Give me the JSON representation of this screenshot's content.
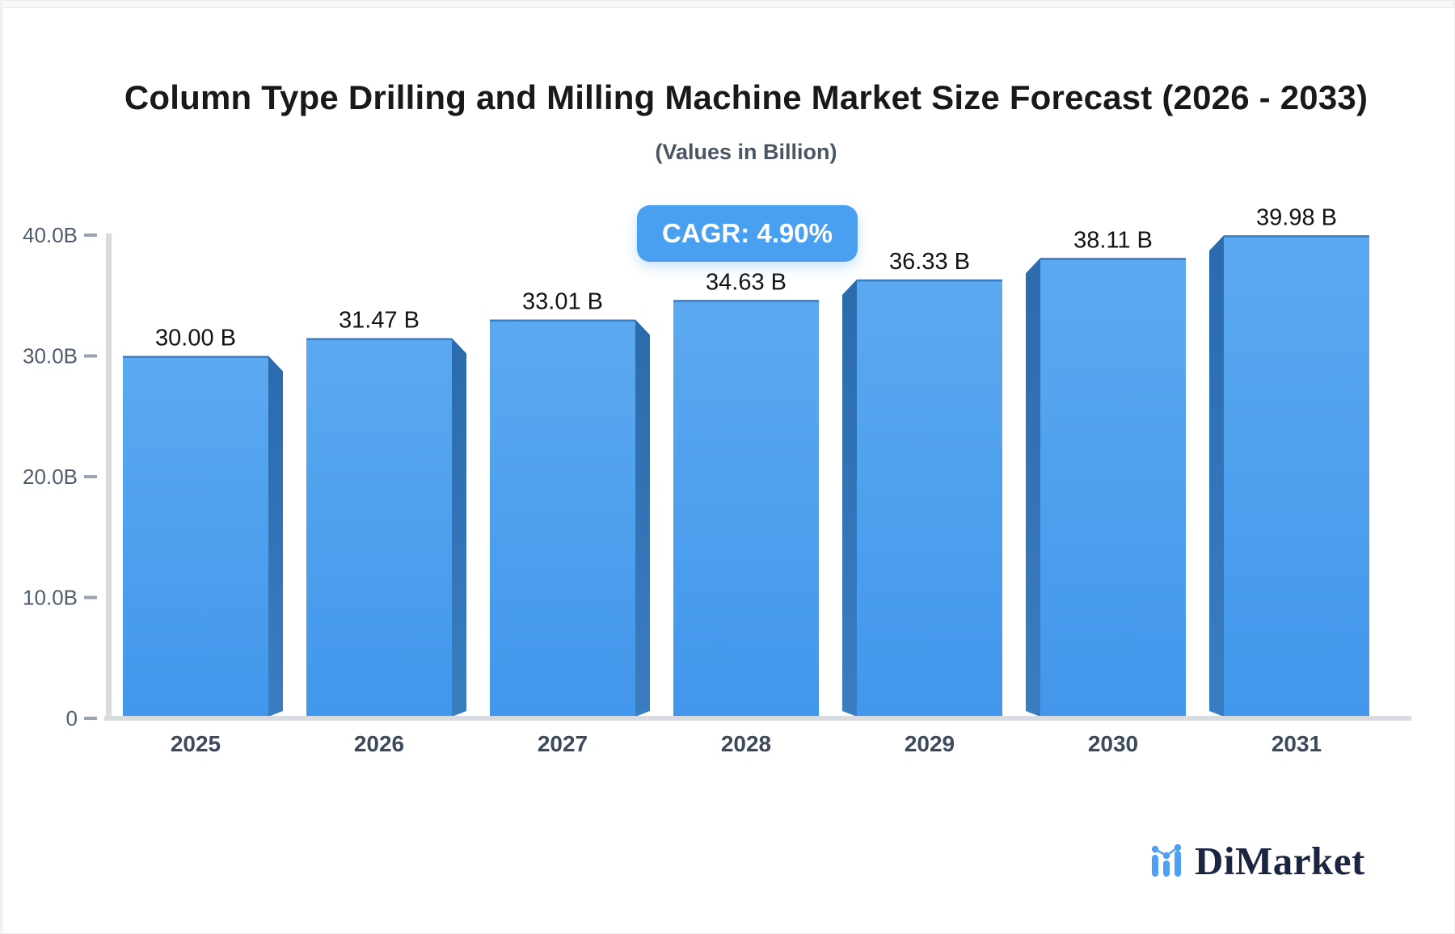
{
  "header": {
    "title": "Column Type Drilling and Milling Machine Market Size Forecast (2026 - 2033)",
    "subtitle": "(Values in Billion)"
  },
  "cagr_badge": {
    "label": "CAGR: 4.90%",
    "bg": "#4AA0F0",
    "text_color": "#FFFFFF"
  },
  "chart_data": {
    "type": "bar",
    "title": "Column Type Drilling and Milling Machine Market Size Forecast (2026 - 2033)",
    "subtitle": "(Values in Billion)",
    "categories": [
      "2025",
      "2026",
      "2027",
      "2028",
      "2029",
      "2030",
      "2031"
    ],
    "values": [
      30.0,
      31.47,
      33.01,
      34.63,
      36.33,
      38.11,
      39.98
    ],
    "value_labels": [
      "30.00 B",
      "31.47 B",
      "33.01 B",
      "34.63 B",
      "36.33 B",
      "38.11 B",
      "39.98 B"
    ],
    "cagr": "4.90%",
    "xlabel": "",
    "ylabel": "",
    "ylim": [
      0,
      40
    ],
    "yticks": [
      {
        "value": 0,
        "label": "0"
      },
      {
        "value": 10,
        "label": "10.0B"
      },
      {
        "value": 20,
        "label": "20.0B"
      },
      {
        "value": 30,
        "label": "30.0B"
      },
      {
        "value": 40,
        "label": "40.0B"
      }
    ],
    "grid": false,
    "legend": "none",
    "style": {
      "bar_face_top": "#5BA9F0",
      "bar_face_bottom": "#4297EC",
      "bar_side_top": "#2B6BAD",
      "bar_side_bottom": "#3A7DC1",
      "bar_top_edge": "#3B7EC6",
      "axis_color": "#D8DBE0",
      "tick_color": "#9AA3AF",
      "y_label_color": "#4D5B6C",
      "x_label_color": "#3D4A5C",
      "value_label_color": "#131313"
    }
  },
  "logo": {
    "text": "DiMarket",
    "icon": "bar-line-chart-icon",
    "icon_color": "#4DA0F4",
    "text_color": "#1B2440"
  }
}
